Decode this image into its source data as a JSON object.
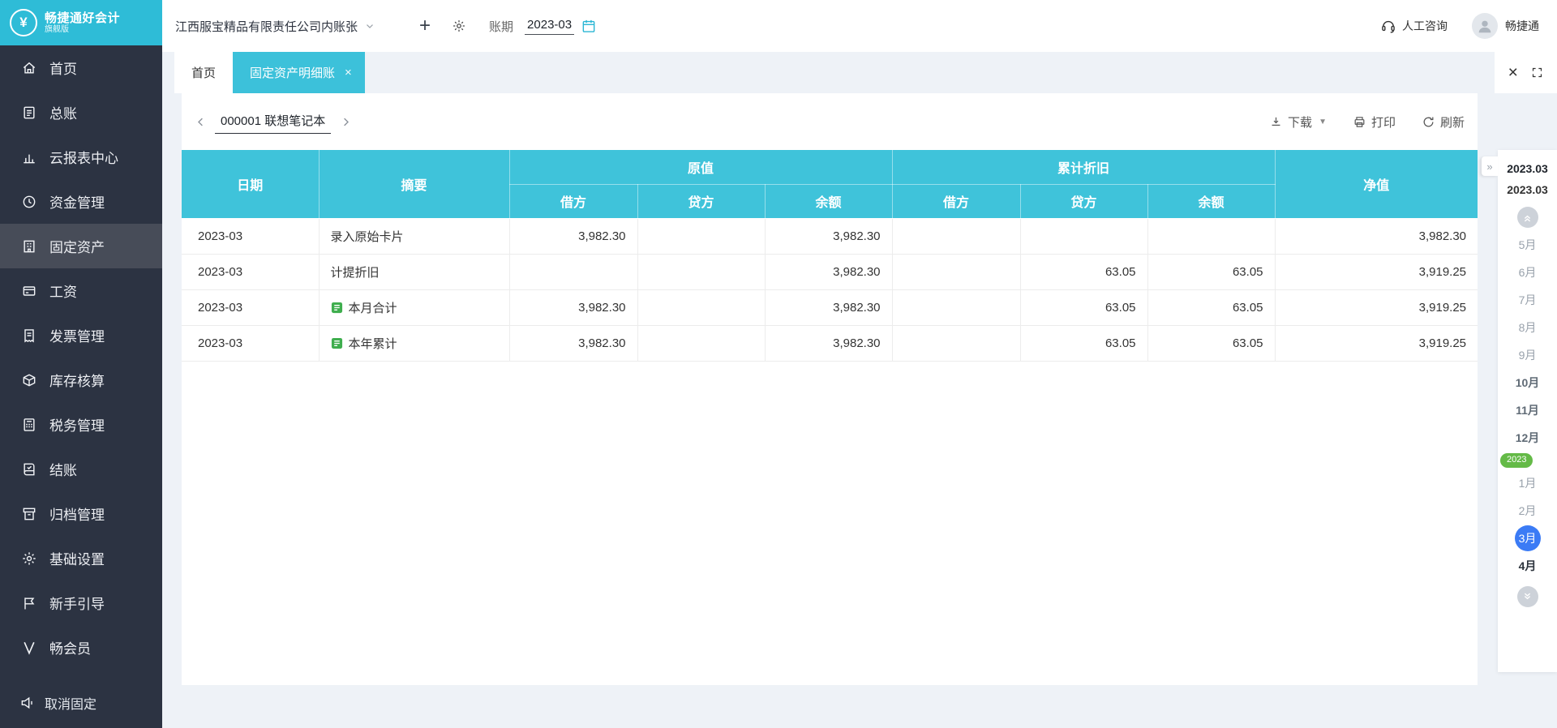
{
  "brand": {
    "name": "畅捷通好会计",
    "edition": "旗舰版",
    "logo_glyph": "¥"
  },
  "colors": {
    "brand_cyan": "#2ebcd7",
    "table_header_cyan": "#3fc3da",
    "sidebar_bg": "#2c3342",
    "active_month_blue": "#3b7bf5",
    "year_badge_green": "#64ba47",
    "page_bg": "#eef2f7"
  },
  "sidebar": {
    "items": [
      {
        "key": "home",
        "icon": "home-icon",
        "label": "首页",
        "active": false
      },
      {
        "key": "general-ledger",
        "icon": "ledger-icon",
        "label": "总账",
        "active": false
      },
      {
        "key": "cloud-reports",
        "icon": "cloud-report-icon",
        "label": "云报表中心",
        "active": false
      },
      {
        "key": "funds",
        "icon": "funds-icon",
        "label": "资金管理",
        "active": false
      },
      {
        "key": "fixed-assets",
        "icon": "fixed-assets-icon",
        "label": "固定资产",
        "active": true
      },
      {
        "key": "salary",
        "icon": "salary-icon",
        "label": "工资",
        "active": false
      },
      {
        "key": "invoices",
        "icon": "invoice-icon",
        "label": "发票管理",
        "active": false
      },
      {
        "key": "inventory",
        "icon": "inventory-icon",
        "label": "库存核算",
        "active": false
      },
      {
        "key": "tax",
        "icon": "tax-icon",
        "label": "税务管理",
        "active": false
      },
      {
        "key": "closing",
        "icon": "closing-icon",
        "label": "结账",
        "active": false
      },
      {
        "key": "archive",
        "icon": "archive-icon",
        "label": "归档管理",
        "active": false
      },
      {
        "key": "settings",
        "icon": "settings-icon",
        "label": "基础设置",
        "active": false
      },
      {
        "key": "guide",
        "icon": "guide-icon",
        "label": "新手引导",
        "active": false
      },
      {
        "key": "member",
        "icon": "member-icon",
        "label": "畅会员",
        "active": false
      }
    ],
    "unpin_label": "取消固定"
  },
  "topbar": {
    "company": "江西服宝精品有限责任公司内账张",
    "period_label": "账期",
    "period_value": "2023-03",
    "support_label": "人工咨询",
    "user_name": "畅捷通"
  },
  "tabs": [
    {
      "label": "首页"
    },
    {
      "label": "固定资产明细账",
      "close_glyph": "×"
    }
  ],
  "window_controls": {
    "close_glyph": "×"
  },
  "toolbar": {
    "asset_code": "000001  联想笔记本",
    "download_label": "下载",
    "print_label": "打印",
    "refresh_label": "刷新"
  },
  "table": {
    "group_headers": {
      "original": "原值",
      "depreciation": "累计折旧"
    },
    "headers": {
      "date": "日期",
      "summary": "摘要",
      "debit": "借方",
      "credit": "贷方",
      "balance": "余额",
      "net": "净值"
    },
    "rows": [
      {
        "date": "2023-03",
        "summary": "录入原始卡片",
        "badge": false,
        "values": [
          "3,982.30",
          "",
          "3,982.30",
          "",
          "",
          "",
          "3,982.30"
        ]
      },
      {
        "date": "2023-03",
        "summary": "计提折旧",
        "badge": false,
        "values": [
          "",
          "",
          "3,982.30",
          "",
          "63.05",
          "63.05",
          "3,919.25"
        ]
      },
      {
        "date": "2023-03",
        "summary": "本月合计",
        "badge": true,
        "values": [
          "3,982.30",
          "",
          "3,982.30",
          "",
          "63.05",
          "63.05",
          "3,919.25"
        ]
      },
      {
        "date": "2023-03",
        "summary": "本年累计",
        "badge": true,
        "values": [
          "3,982.30",
          "",
          "3,982.30",
          "",
          "63.05",
          "63.05",
          "3,919.25"
        ]
      }
    ]
  },
  "timeline": {
    "period_top": "2023.03",
    "period_sub": "2023.03",
    "collapse_glyph": "»",
    "months": [
      {
        "label": "5月",
        "state": "normal"
      },
      {
        "label": "6月",
        "state": "normal"
      },
      {
        "label": "7月",
        "state": "normal"
      },
      {
        "label": "8月",
        "state": "normal"
      },
      {
        "label": "9月",
        "state": "normal"
      },
      {
        "label": "10月",
        "state": "dark"
      },
      {
        "label": "11月",
        "state": "dark"
      },
      {
        "label": "12月",
        "state": "dark"
      },
      {
        "label": "2023",
        "state": "year"
      },
      {
        "label": "1月",
        "state": "normal"
      },
      {
        "label": "2月",
        "state": "normal"
      },
      {
        "label": "3月",
        "state": "active"
      },
      {
        "label": "4月",
        "state": "current"
      }
    ]
  }
}
